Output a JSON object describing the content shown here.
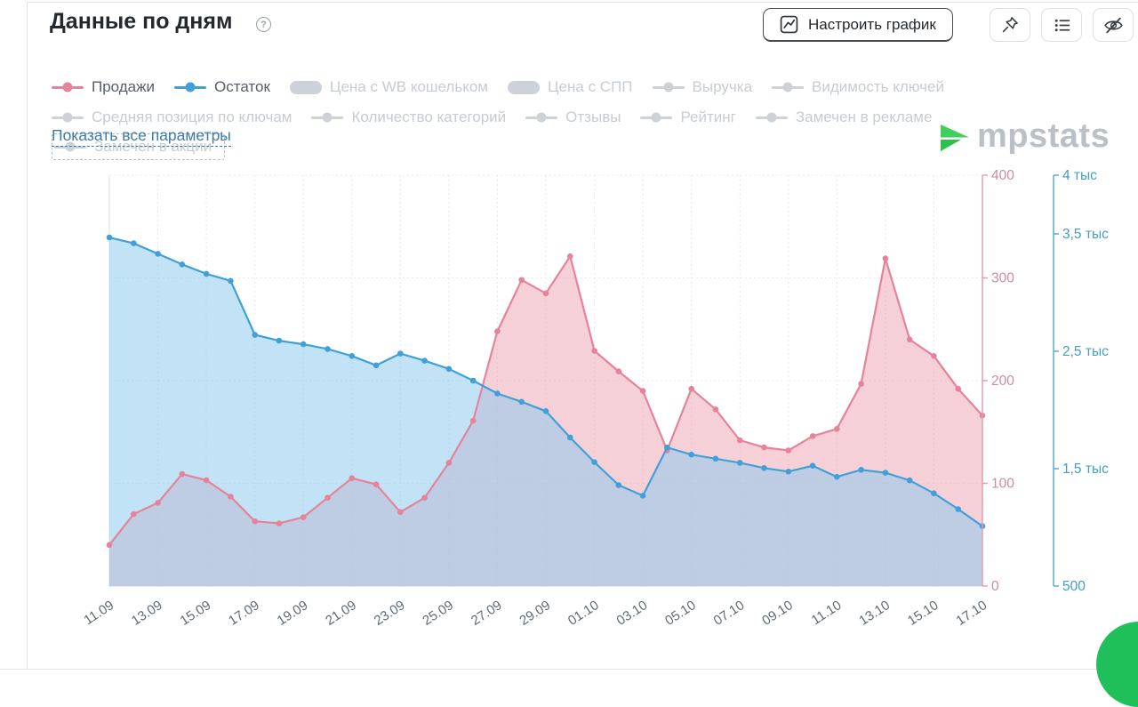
{
  "header": {
    "title": "Данные по дням",
    "help": "?",
    "configure_button": "Настроить график",
    "icons": [
      "line-chart-icon",
      "pin-icon",
      "list-icon",
      "eye-off-icon"
    ]
  },
  "legend": {
    "rows": [
      [
        {
          "label": "Продажи",
          "marker": "line-dot",
          "color": "#e5839a",
          "active": true
        },
        {
          "label": "Остаток",
          "marker": "line-dot",
          "color": "#41a0d8",
          "active": true
        },
        {
          "label": "Цена с WB кошельком",
          "marker": "band",
          "color": "#ccd2d7",
          "active": false
        },
        {
          "label": "Цена с СПП",
          "marker": "band",
          "color": "#ccd2d7",
          "active": false
        },
        {
          "label": "Выручка",
          "marker": "line-dot",
          "color": "#ccd2d7",
          "active": false
        },
        {
          "label": "Видимость ключей",
          "marker": "line-dot",
          "color": "#ccd2d7",
          "active": false
        }
      ],
      [
        {
          "label": "Средняя позиция по ключам",
          "marker": "line-dot",
          "color": "#ccd2d7",
          "active": false
        },
        {
          "label": "Количество категорий",
          "marker": "line-dot",
          "color": "#ccd2d7",
          "active": false
        },
        {
          "label": "Отзывы",
          "marker": "line-dot",
          "color": "#ccd2d7",
          "active": false
        },
        {
          "label": "Рейтинг",
          "marker": "line-dot",
          "color": "#ccd2d7",
          "active": false
        },
        {
          "label": "Замечен в рекламе",
          "marker": "line-dot",
          "color": "#ccd2d7",
          "active": false
        }
      ],
      [
        {
          "label": "Замечен в акции",
          "marker": "line-dot",
          "color": "#ccd2d7",
          "active": false,
          "dashed_box": true
        }
      ]
    ],
    "show_all_link": "Показать все параметры"
  },
  "watermark": "mpstats",
  "colors": {
    "sales_line": "#e5839a",
    "sales_fill": "rgba(236,163,176,0.5)",
    "stock_line": "#41a0d8",
    "stock_fill": "rgba(144,202,237,0.55)",
    "chat_bubble": "#1fc05a"
  },
  "chart_data": {
    "type": "line",
    "x": [
      "11.09",
      "12.09",
      "13.09",
      "14.09",
      "15.09",
      "16.09",
      "17.09",
      "18.09",
      "19.09",
      "20.09",
      "21.09",
      "22.09",
      "23.09",
      "24.09",
      "25.09",
      "26.09",
      "27.09",
      "28.09",
      "29.09",
      "30.09",
      "01.10",
      "02.10",
      "03.10",
      "04.10",
      "05.10",
      "06.10",
      "07.10",
      "08.10",
      "09.10",
      "10.10",
      "11.10",
      "12.10",
      "13.10",
      "14.10",
      "15.10",
      "16.10",
      "17.10"
    ],
    "x_tick_labels": [
      "11.09",
      "13.09",
      "15.09",
      "17.09",
      "19.09",
      "21.09",
      "23.09",
      "25.09",
      "27.09",
      "29.09",
      "01.10",
      "03.10",
      "05.10",
      "07.10",
      "09.10",
      "11.10",
      "13.10",
      "15.10",
      "17.10"
    ],
    "series": [
      {
        "name": "Продажи",
        "axis": "sales",
        "color": "#e5839a",
        "fill": "rgba(236,163,176,0.5)",
        "values": [
          40,
          70,
          81,
          109,
          103,
          87,
          63,
          61,
          67,
          86,
          105,
          99,
          72,
          86,
          120,
          161,
          248,
          298,
          285,
          321,
          229,
          209,
          190,
          132,
          192,
          172,
          142,
          135,
          132,
          146,
          153,
          197,
          319,
          240,
          224,
          192,
          166
        ]
      },
      {
        "name": "Остаток",
        "axis": "stock",
        "color": "#41a0d8",
        "fill": "rgba(144,202,237,0.55)",
        "values": [
          3470,
          3420,
          3330,
          3240,
          3160,
          3100,
          2640,
          2590,
          2560,
          2520,
          2460,
          2380,
          2480,
          2420,
          2350,
          2250,
          2140,
          2070,
          1990,
          1765,
          1555,
          1360,
          1270,
          1680,
          1620,
          1585,
          1550,
          1505,
          1475,
          1525,
          1430,
          1490,
          1465,
          1400,
          1290,
          1155,
          1010
        ]
      }
    ],
    "axes": {
      "sales": {
        "title": "Продажи",
        "position": "right-inner",
        "range": [
          0,
          400
        ],
        "ticks": [
          0,
          100,
          200,
          300,
          400
        ],
        "tick_labels": [
          "0",
          "100",
          "200",
          "300",
          "400"
        ],
        "color": "#e2a0ae",
        "label_color": "#cf8c9c"
      },
      "stock": {
        "title": "Остаток",
        "position": "right-outer",
        "range": [
          500,
          4000
        ],
        "ticks": [
          500,
          1500,
          2500,
          3500,
          4000
        ],
        "tick_labels": [
          "500",
          "1,5 тыс",
          "2,5 тыс",
          "3,5 тыс",
          "4 тыс"
        ],
        "color": "#57add0",
        "label_color": "#3f9fc4"
      }
    },
    "grid": {
      "vertical": "dotted",
      "horizontal": "dotted"
    },
    "legend_position": "top-left"
  }
}
